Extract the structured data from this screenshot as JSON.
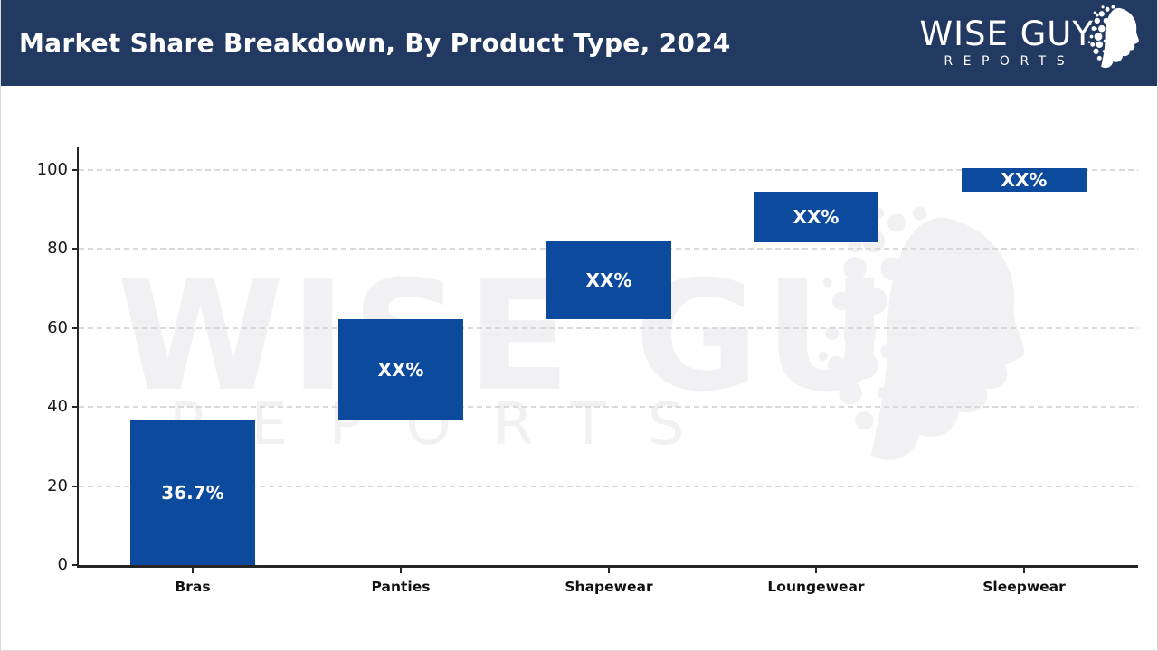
{
  "header": {
    "title": "Market Share Breakdown, By Product Type, 2024",
    "logo": {
      "line1": "WISE GUY",
      "line2": "REPORTS"
    }
  },
  "watermark": {
    "line1": "WISE GUY",
    "line2": "REPORTS"
  },
  "colors": {
    "header_bg": "#223962",
    "bar": "#0c4a9e",
    "grid": "#d9d9d9",
    "axis": "#262626",
    "tick_text": "#1a1a1a",
    "bar_label_text": "#ffffff",
    "watermark": "#f1f1f3"
  },
  "chart_data": {
    "type": "bar",
    "subtype": "waterfall",
    "title": "Market Share Breakdown, By Product Type, 2024",
    "categories": [
      "Bras",
      "Panties",
      "Shapewear",
      "Loungewear",
      "Sleepwear"
    ],
    "segments": [
      {
        "category": "Bras",
        "start": 0,
        "end": 36.7,
        "label": "36.7%"
      },
      {
        "category": "Panties",
        "start": 36.9,
        "end": 62.3,
        "label": "XX%"
      },
      {
        "category": "Shapewear",
        "start": 62.3,
        "end": 82.2,
        "label": "XX%"
      },
      {
        "category": "Loungewear",
        "start": 81.8,
        "end": 94.6,
        "label": "XX%"
      },
      {
        "category": "Sleepwear",
        "start": 94.5,
        "end": 100.5,
        "label": "XX%"
      }
    ],
    "xlabel": "",
    "ylabel": "",
    "ylim": [
      0,
      105.7
    ],
    "yticks": [
      0,
      20,
      40,
      60,
      80,
      100
    ],
    "grid": "horizontal-dashed",
    "legend": "none"
  }
}
